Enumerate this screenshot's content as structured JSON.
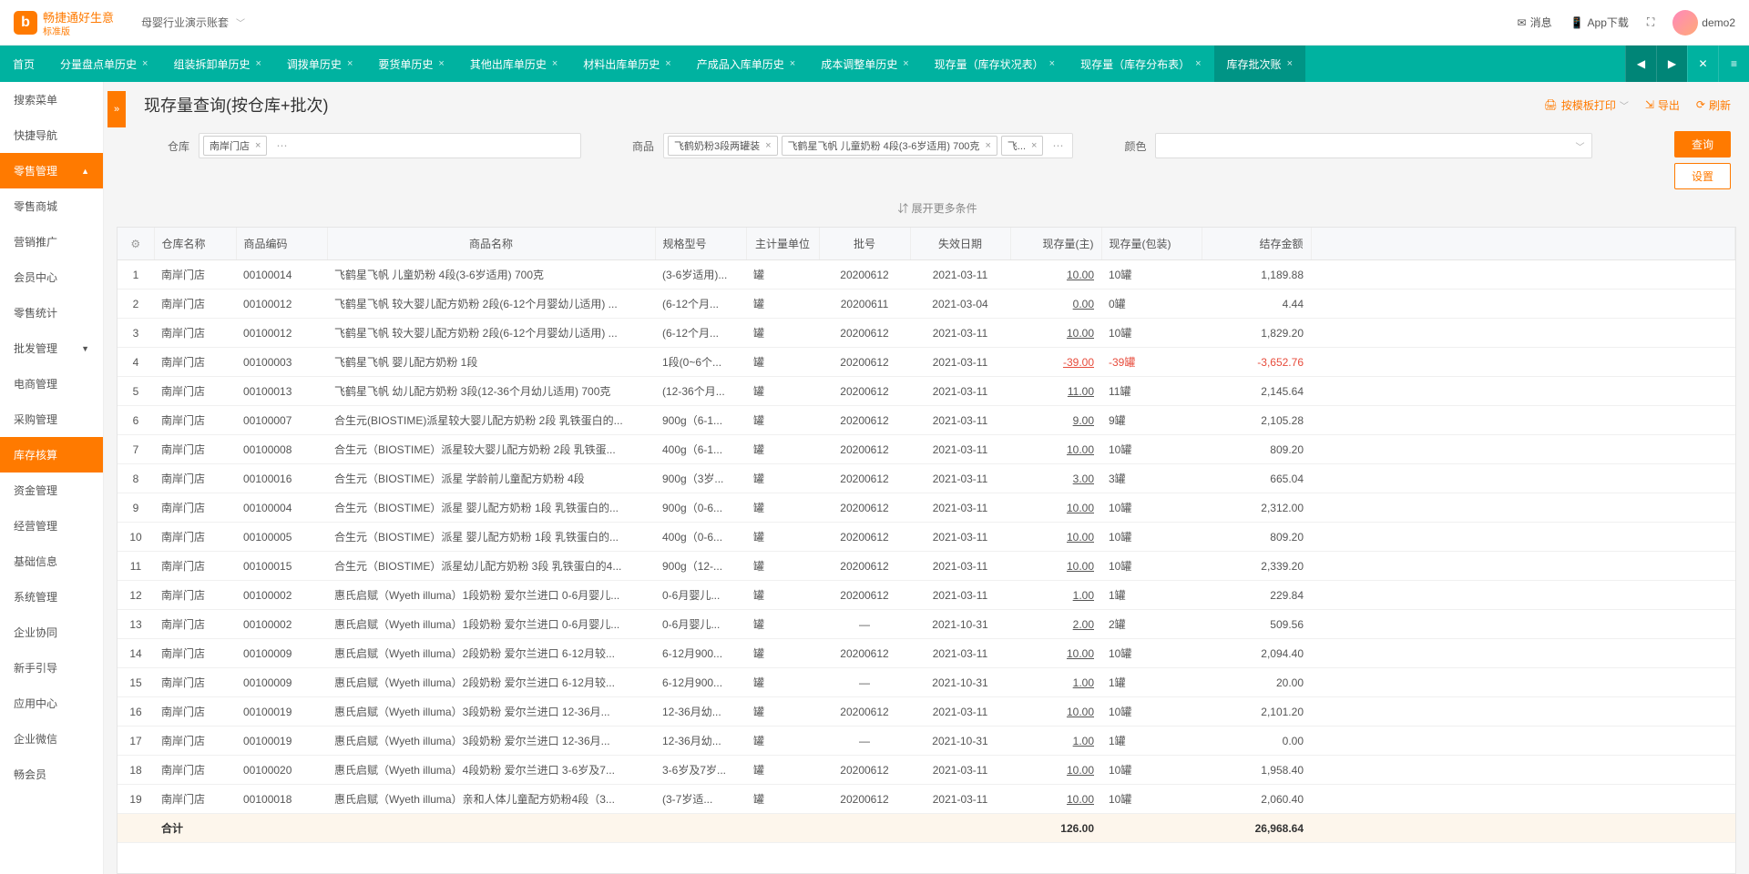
{
  "brand": {
    "name": "畅捷通好生意",
    "sub": "标准版",
    "logo_letter": "b"
  },
  "account": "母婴行业演示账套",
  "top_right": {
    "msg": "消息",
    "app": "App下载",
    "user": "demo2"
  },
  "tabs": [
    {
      "label": "首页",
      "closable": false
    },
    {
      "label": "分量盘点单历史",
      "closable": true
    },
    {
      "label": "组装拆卸单历史",
      "closable": true
    },
    {
      "label": "调拨单历史",
      "closable": true
    },
    {
      "label": "要货单历史",
      "closable": true
    },
    {
      "label": "其他出库单历史",
      "closable": true
    },
    {
      "label": "材料出库单历史",
      "closable": true
    },
    {
      "label": "产成品入库单历史",
      "closable": true
    },
    {
      "label": "成本调整单历史",
      "closable": true
    },
    {
      "label": "现存量（库存状况表）",
      "closable": true
    },
    {
      "label": "现存量（库存分布表）",
      "closable": true
    },
    {
      "label": "库存批次账",
      "closable": true,
      "active": true
    }
  ],
  "sidebar": [
    {
      "label": "搜索菜单"
    },
    {
      "label": "快捷导航"
    },
    {
      "label": "零售管理",
      "act": true,
      "arrow": "▲"
    },
    {
      "label": "零售商城",
      "sub": true
    },
    {
      "label": "营销推广",
      "sub": true
    },
    {
      "label": "会员中心",
      "sub": true
    },
    {
      "label": "零售统计",
      "sub": true
    },
    {
      "label": "批发管理",
      "arrow": "▼"
    },
    {
      "label": "电商管理"
    },
    {
      "label": "采购管理"
    },
    {
      "label": "库存核算",
      "act": true
    },
    {
      "label": "资金管理"
    },
    {
      "label": "经营管理"
    },
    {
      "label": "基础信息"
    },
    {
      "label": "系统管理"
    },
    {
      "label": "企业协同"
    },
    {
      "label": "新手引导"
    },
    {
      "label": "应用中心"
    },
    {
      "label": "企业微信"
    },
    {
      "label": "畅会员"
    }
  ],
  "page_title": "现存量查询(按仓库+批次)",
  "actions": {
    "print": "按模板打印",
    "export": "导出",
    "refresh": "刷新"
  },
  "filters": {
    "warehouse_label": "仓库",
    "warehouse_tags": [
      "南岸门店"
    ],
    "product_label": "商品",
    "product_tags": [
      "飞鹤奶粉3段两罐装",
      "飞鹤星飞帆 儿童奶粉 4段(3-6岁适用) 700克",
      "飞..."
    ],
    "color_label": "颜色"
  },
  "expand": "展开更多条件",
  "buttons": {
    "query": "查询",
    "setting": "设置"
  },
  "columns": [
    "",
    "仓库名称",
    "商品编码",
    "商品名称",
    "规格型号",
    "主计量单位",
    "批号",
    "失效日期",
    "现存量(主)",
    "现存量(包装)",
    "结存金额"
  ],
  "gear": "⚙",
  "rows": [
    {
      "i": 1,
      "wh": "南岸门店",
      "code": "00100014",
      "name": "飞鹤星飞帆 儿童奶粉 4段(3-6岁适用) 700克",
      "spec": "(3-6岁适用)...",
      "unit": "罐",
      "batch": "20200612",
      "exp": "2021-03-11",
      "qty": "10.00",
      "pkg": "10罐",
      "amt": "1,189.88"
    },
    {
      "i": 2,
      "wh": "南岸门店",
      "code": "00100012",
      "name": "飞鹤星飞帆 较大婴儿配方奶粉 2段(6-12个月婴幼儿适用) ...",
      "spec": "(6-12个月...",
      "unit": "罐",
      "batch": "20200611",
      "exp": "2021-03-04",
      "qty": "0.00",
      "pkg": "0罐",
      "amt": "4.44"
    },
    {
      "i": 3,
      "wh": "南岸门店",
      "code": "00100012",
      "name": "飞鹤星飞帆 较大婴儿配方奶粉 2段(6-12个月婴幼儿适用) ...",
      "spec": "(6-12个月...",
      "unit": "罐",
      "batch": "20200612",
      "exp": "2021-03-11",
      "qty": "10.00",
      "pkg": "10罐",
      "amt": "1,829.20"
    },
    {
      "i": 4,
      "wh": "南岸门店",
      "code": "00100003",
      "name": "飞鹤星飞帆 婴儿配方奶粉 1段",
      "spec": "1段(0~6个...",
      "unit": "罐",
      "batch": "20200612",
      "exp": "2021-03-11",
      "qty": "-39.00",
      "pkg": "-39罐",
      "amt": "-3,652.76",
      "neg": true
    },
    {
      "i": 5,
      "wh": "南岸门店",
      "code": "00100013",
      "name": "飞鹤星飞帆 幼儿配方奶粉 3段(12-36个月幼儿适用) 700克",
      "spec": "(12-36个月...",
      "unit": "罐",
      "batch": "20200612",
      "exp": "2021-03-11",
      "qty": "11.00",
      "pkg": "11罐",
      "amt": "2,145.64"
    },
    {
      "i": 6,
      "wh": "南岸门店",
      "code": "00100007",
      "name": "合生元(BIOSTIME)派星较大婴儿配方奶粉 2段 乳铁蛋白的...",
      "spec": "900g（6-1...",
      "unit": "罐",
      "batch": "20200612",
      "exp": "2021-03-11",
      "qty": "9.00",
      "pkg": "9罐",
      "amt": "2,105.28"
    },
    {
      "i": 7,
      "wh": "南岸门店",
      "code": "00100008",
      "name": "合生元（BIOSTIME）派星较大婴儿配方奶粉 2段 乳铁蛋...",
      "spec": "400g（6-1...",
      "unit": "罐",
      "batch": "20200612",
      "exp": "2021-03-11",
      "qty": "10.00",
      "pkg": "10罐",
      "amt": "809.20"
    },
    {
      "i": 8,
      "wh": "南岸门店",
      "code": "00100016",
      "name": "合生元（BIOSTIME）派星 学龄前儿童配方奶粉 4段",
      "spec": "900g（3岁...",
      "unit": "罐",
      "batch": "20200612",
      "exp": "2021-03-11",
      "qty": "3.00",
      "pkg": "3罐",
      "amt": "665.04"
    },
    {
      "i": 9,
      "wh": "南岸门店",
      "code": "00100004",
      "name": "合生元（BIOSTIME）派星 婴儿配方奶粉 1段 乳铁蛋白的...",
      "spec": "900g（0-6...",
      "unit": "罐",
      "batch": "20200612",
      "exp": "2021-03-11",
      "qty": "10.00",
      "pkg": "10罐",
      "amt": "2,312.00"
    },
    {
      "i": 10,
      "wh": "南岸门店",
      "code": "00100005",
      "name": "合生元（BIOSTIME）派星 婴儿配方奶粉 1段 乳铁蛋白的...",
      "spec": "400g（0-6...",
      "unit": "罐",
      "batch": "20200612",
      "exp": "2021-03-11",
      "qty": "10.00",
      "pkg": "10罐",
      "amt": "809.20"
    },
    {
      "i": 11,
      "wh": "南岸门店",
      "code": "00100015",
      "name": "合生元（BIOSTIME）派星幼儿配方奶粉 3段 乳铁蛋白的4...",
      "spec": "900g（12-...",
      "unit": "罐",
      "batch": "20200612",
      "exp": "2021-03-11",
      "qty": "10.00",
      "pkg": "10罐",
      "amt": "2,339.20"
    },
    {
      "i": 12,
      "wh": "南岸门店",
      "code": "00100002",
      "name": "惠氏启赋（Wyeth illuma）1段奶粉 爱尔兰进口 0-6月婴儿...",
      "spec": "0-6月婴儿...",
      "unit": "罐",
      "batch": "20200612",
      "exp": "2021-03-11",
      "qty": "1.00",
      "pkg": "1罐",
      "amt": "229.84"
    },
    {
      "i": 13,
      "wh": "南岸门店",
      "code": "00100002",
      "name": "惠氏启赋（Wyeth illuma）1段奶粉 爱尔兰进口 0-6月婴儿...",
      "spec": "0-6月婴儿...",
      "unit": "罐",
      "batch": "—",
      "exp": "2021-10-31",
      "qty": "2.00",
      "pkg": "2罐",
      "amt": "509.56"
    },
    {
      "i": 14,
      "wh": "南岸门店",
      "code": "00100009",
      "name": "惠氏启赋（Wyeth illuma）2段奶粉 爱尔兰进口 6-12月较...",
      "spec": "6-12月900...",
      "unit": "罐",
      "batch": "20200612",
      "exp": "2021-03-11",
      "qty": "10.00",
      "pkg": "10罐",
      "amt": "2,094.40"
    },
    {
      "i": 15,
      "wh": "南岸门店",
      "code": "00100009",
      "name": "惠氏启赋（Wyeth illuma）2段奶粉 爱尔兰进口 6-12月较...",
      "spec": "6-12月900...",
      "unit": "罐",
      "batch": "—",
      "exp": "2021-10-31",
      "qty": "1.00",
      "pkg": "1罐",
      "amt": "20.00"
    },
    {
      "i": 16,
      "wh": "南岸门店",
      "code": "00100019",
      "name": "惠氏启赋（Wyeth illuma）3段奶粉 爱尔兰进口 12-36月...",
      "spec": "12-36月幼...",
      "unit": "罐",
      "batch": "20200612",
      "exp": "2021-03-11",
      "qty": "10.00",
      "pkg": "10罐",
      "amt": "2,101.20"
    },
    {
      "i": 17,
      "wh": "南岸门店",
      "code": "00100019",
      "name": "惠氏启赋（Wyeth illuma）3段奶粉 爱尔兰进口 12-36月...",
      "spec": "12-36月幼...",
      "unit": "罐",
      "batch": "—",
      "exp": "2021-10-31",
      "qty": "1.00",
      "pkg": "1罐",
      "amt": "0.00"
    },
    {
      "i": 18,
      "wh": "南岸门店",
      "code": "00100020",
      "name": "惠氏启赋（Wyeth illuma）4段奶粉 爱尔兰进口 3-6岁及7...",
      "spec": "3-6岁及7岁...",
      "unit": "罐",
      "batch": "20200612",
      "exp": "2021-03-11",
      "qty": "10.00",
      "pkg": "10罐",
      "amt": "1,958.40"
    },
    {
      "i": 19,
      "wh": "南岸门店",
      "code": "00100018",
      "name": "惠氏启赋（Wyeth illuma）亲和人体儿童配方奶粉4段（3...",
      "spec": "(3-7岁适...",
      "unit": "罐",
      "batch": "20200612",
      "exp": "2021-03-11",
      "qty": "10.00",
      "pkg": "10罐",
      "amt": "2,060.40"
    }
  ],
  "total": {
    "label": "合计",
    "qty": "126.00",
    "amt": "26,968.64"
  },
  "colors": {
    "primary": "#00b2a0",
    "accent": "#ff7a00",
    "neg": "#e74c3c"
  }
}
